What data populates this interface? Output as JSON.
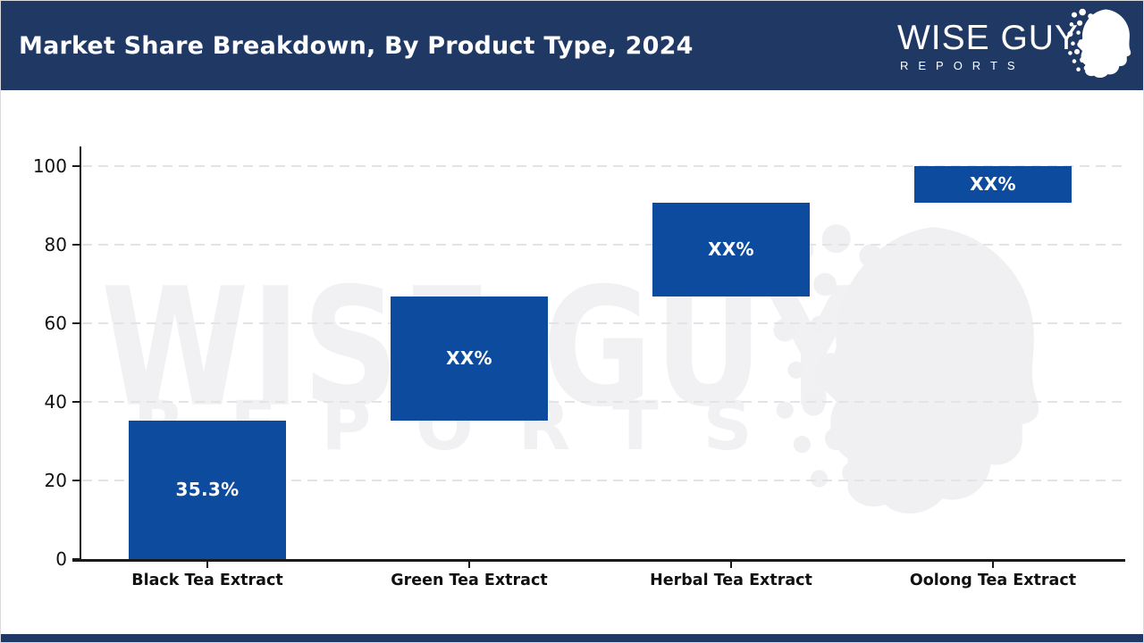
{
  "header": {
    "title": "Market Share Breakdown, By Product Type, 2024",
    "logo": {
      "brand": "WISE GUY",
      "sub": "REPORTS"
    }
  },
  "watermark": {
    "brand": "WISE GUY",
    "sub": "REPORTS"
  },
  "footer": {},
  "colors": {
    "header_bg": "#1f3864",
    "bar": "#0d4b9e",
    "grid": "#e4e4e7",
    "axis": "#1a1a1a",
    "watermark": "#f1f1f4",
    "bar_label": "#ffffff"
  },
  "chart_data": {
    "type": "bar",
    "subtype": "waterfall",
    "title": "Market Share Breakdown, By Product Type, 2024",
    "categories": [
      "Black Tea Extract",
      "Green Tea Extract",
      "Herbal Tea Extract",
      "Oolong Tea Extract"
    ],
    "bars": [
      {
        "category": "Black Tea Extract",
        "start": 0,
        "end": 35.3,
        "label": "35.3%"
      },
      {
        "category": "Green Tea Extract",
        "start": 35.3,
        "end": 66.8,
        "label": "XX%"
      },
      {
        "category": "Herbal Tea Extract",
        "start": 66.8,
        "end": 90.7,
        "label": "XX%"
      },
      {
        "category": "Oolong Tea Extract",
        "start": 90.7,
        "end": 100,
        "label": "XX%"
      }
    ],
    "yticks": [
      "0",
      "20",
      "40",
      "60",
      "80",
      "100"
    ],
    "ylim": [
      0,
      103
    ],
    "xlabel": "",
    "ylabel": "",
    "grid": "horizontal-dashed",
    "legend": "none"
  }
}
